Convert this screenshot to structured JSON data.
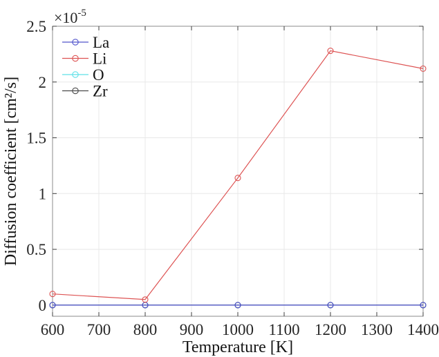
{
  "chart_data": {
    "type": "line",
    "title": "",
    "xlabel": "Temperature [K]",
    "ylabel": "Diffusion coefficient [cm²/s]",
    "exponent_label": {
      "base": "×10",
      "exp": "-5"
    },
    "x": [
      600,
      800,
      1000,
      1200,
      1400
    ],
    "series": [
      {
        "name": "La",
        "color": "#5053cb",
        "values": [
          0.0,
          0.0,
          0.0,
          0.0,
          0.0
        ]
      },
      {
        "name": "Li",
        "color": "#dd5252",
        "values": [
          0.1,
          0.05,
          1.14,
          2.28,
          2.12
        ]
      },
      {
        "name": "O",
        "color": "#5ee0e8",
        "values": [
          0.0,
          0.0,
          0.0,
          0.0,
          0.0
        ]
      },
      {
        "name": "Zr",
        "color": "#494949",
        "values": [
          0.0,
          0.0,
          0.0,
          0.0,
          0.0
        ]
      }
    ],
    "y_unit_scale": 1e-05,
    "xlim": [
      600,
      1400
    ],
    "ylim": [
      -0.1,
      2.5
    ],
    "xticks": [
      600,
      700,
      800,
      900,
      1000,
      1100,
      1200,
      1300,
      1400
    ],
    "yticks": [
      0,
      0.5,
      1,
      1.5,
      2,
      2.5
    ],
    "grid": true,
    "marker": "circle",
    "legend": {
      "position": "top-left",
      "boxed": false,
      "entries": [
        "La",
        "Li",
        "O",
        "Zr"
      ]
    },
    "draw_order": [
      "O",
      "Zr",
      "La",
      "Li"
    ]
  },
  "style": {
    "background": "#ffffff",
    "axis_box_color": "#8b8b8b",
    "tick_mark_color": "#3d3d3d",
    "grid_color": "#e8e8e8",
    "tick_label_color": "#262626",
    "label_color": "#141414"
  }
}
